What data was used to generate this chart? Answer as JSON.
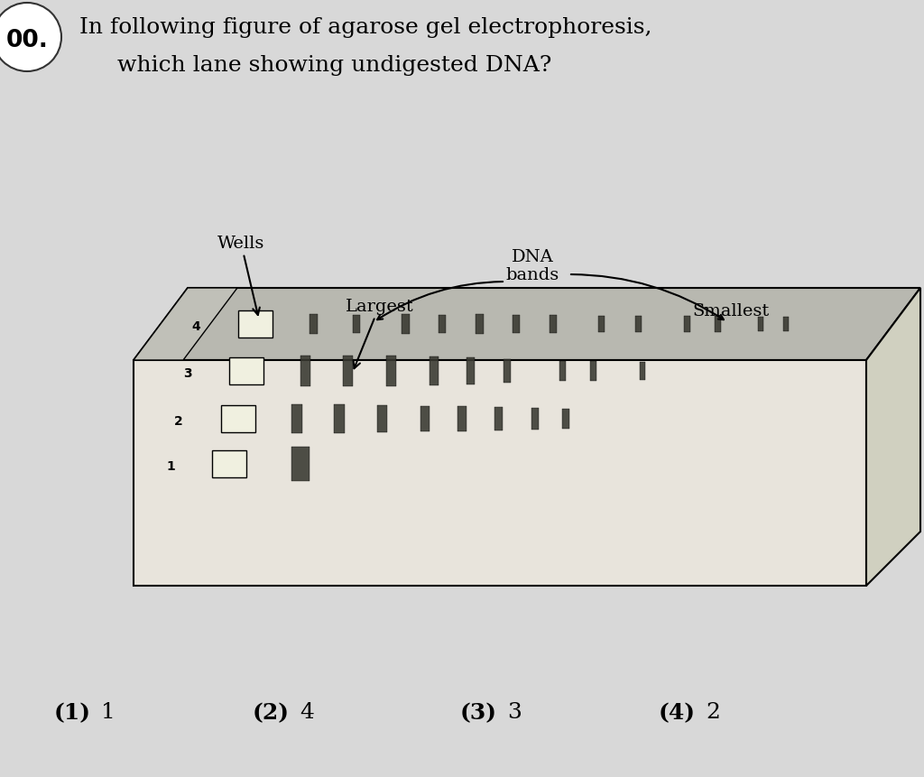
{
  "bg_color": "#dcdcdc",
  "title_line1": "In following figure of agarose gel electrophoresis,",
  "title_line2": "which lane showing undigested DNA?",
  "question_num": "00.",
  "answers_left": [
    "(1)",
    "(2)",
    "(3)",
    "(4)"
  ],
  "answers_right": [
    "1",
    "4",
    "3",
    "2"
  ],
  "label_wells": "Wells",
  "label_largest": "Largest",
  "label_dna_bands_line1": "DNA",
  "label_dna_bands_line2": "bands",
  "label_smallest": "Smallest",
  "lane_labels": [
    "4",
    "3",
    "2",
    "1"
  ],
  "gel_surface_color": "#b8b8b0",
  "gel_front_color": "#e8e8e0",
  "gel_right_color": "#d0d0c8",
  "gel_left_strip_color": "#c8c8c0",
  "well_color": "#f0f0e8",
  "band_color": "#383830",
  "outline_color": "#000000"
}
